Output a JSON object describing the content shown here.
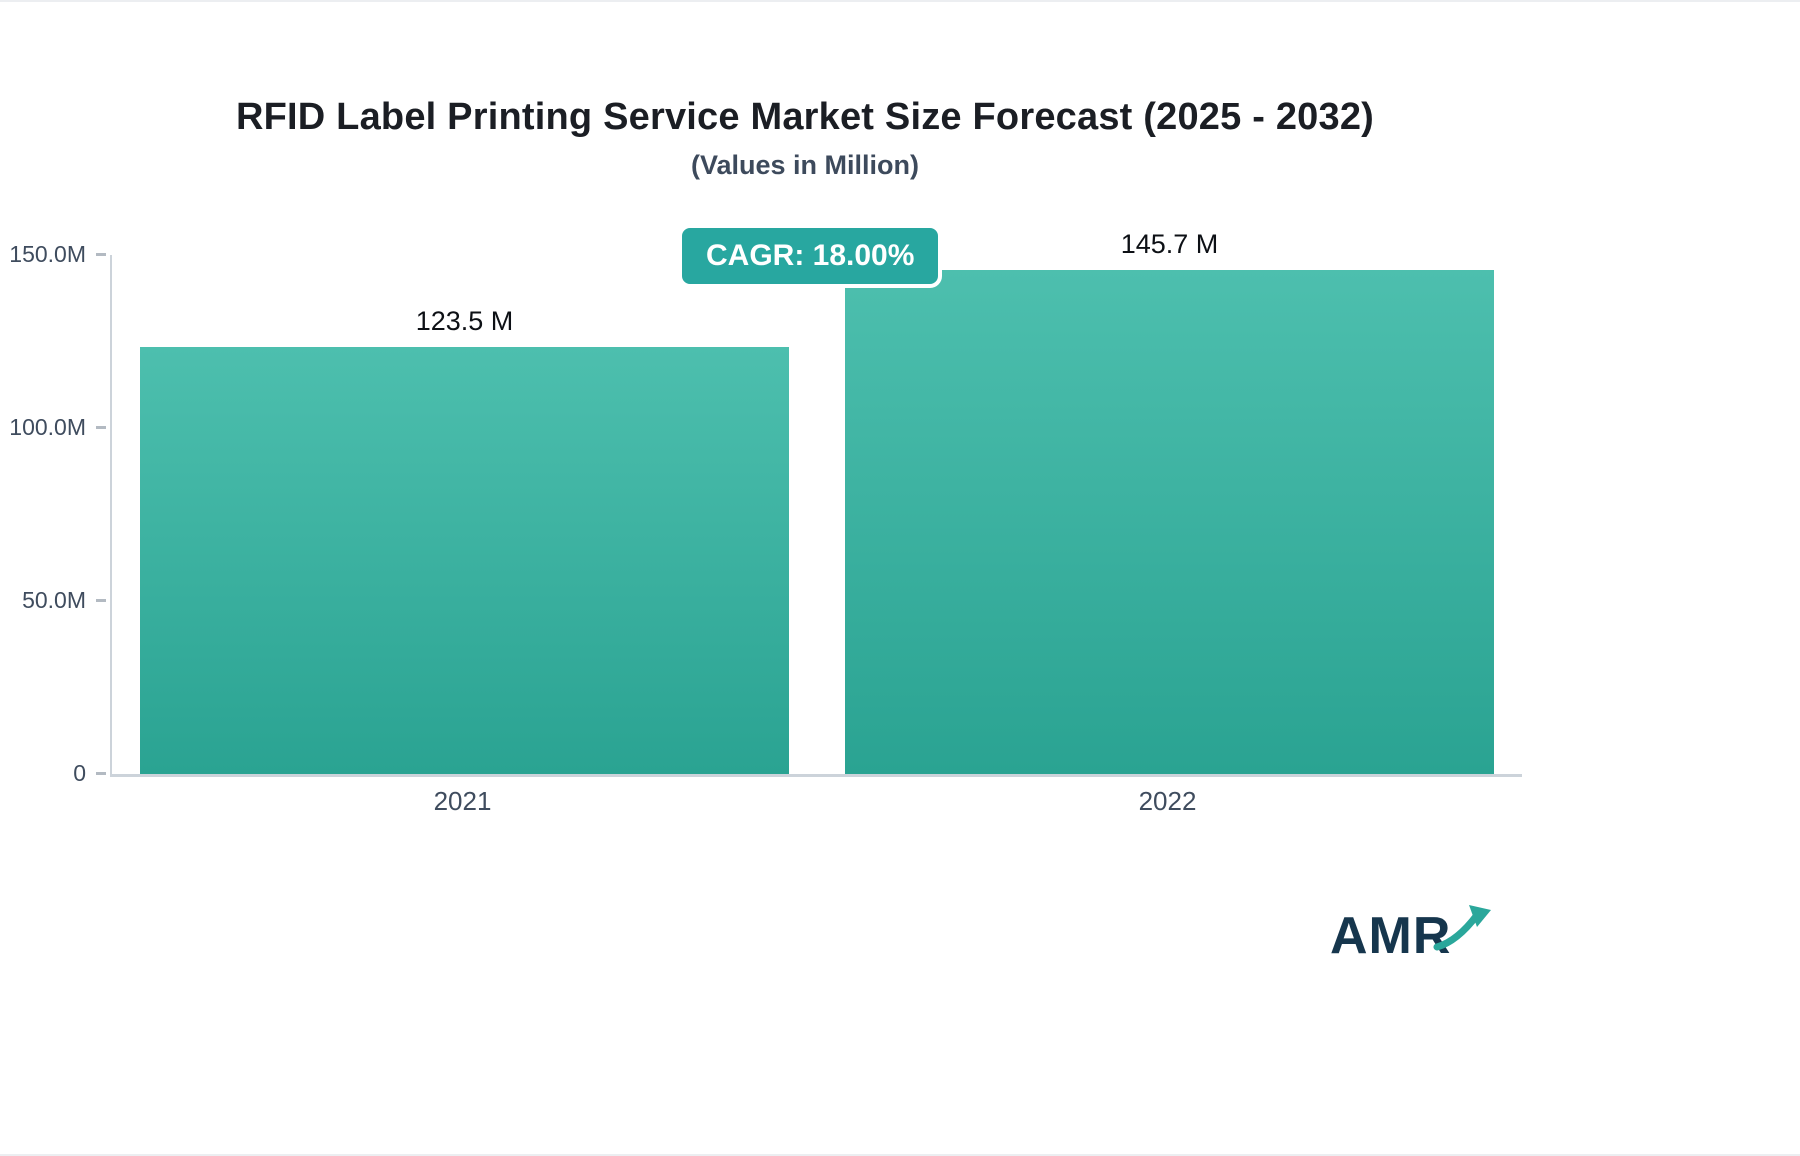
{
  "cagr_badge": {
    "text": "CAGR: 18.00%"
  },
  "logo": {
    "text": "AMR"
  },
  "colors": {
    "bar_top": "#4dbfae",
    "bar_bottom": "#2aa392",
    "badge": "#28a7a0",
    "axis": "#ccd3da",
    "logo_text": "#16364d",
    "logo_arrow": "#2aa79b"
  },
  "chart_data": {
    "type": "bar",
    "title": "RFID Label Printing Service Market Size Forecast (2025 - 2032)",
    "subtitle": "(Values in Million)",
    "categories": [
      "2021",
      "2022"
    ],
    "values": [
      123.5,
      145.7
    ],
    "value_labels": [
      "123.5 M",
      "145.7 M"
    ],
    "unit": "Million",
    "xlabel": "",
    "ylabel": "",
    "ylim": [
      0,
      150
    ],
    "yticks": [
      {
        "value": 0,
        "label": "0"
      },
      {
        "value": 50,
        "label": "50.0M"
      },
      {
        "value": 100,
        "label": "100.0M"
      },
      {
        "value": 150,
        "label": "150.0M"
      }
    ],
    "grid": false,
    "legend": false,
    "annotations": [
      "CAGR: 18.00%"
    ]
  }
}
